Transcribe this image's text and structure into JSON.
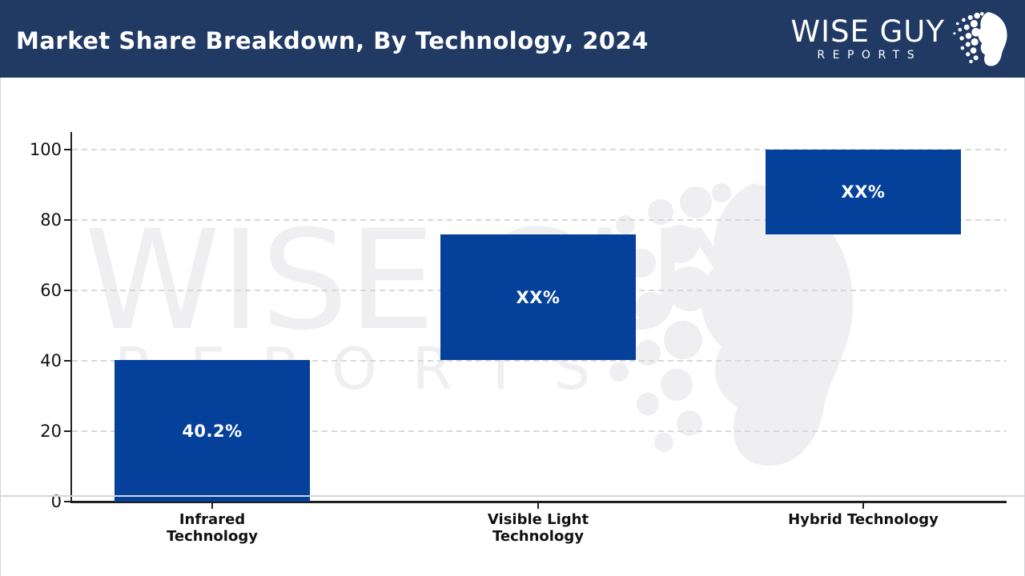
{
  "header": {
    "title": "Market Share Breakdown, By Technology, 2024",
    "logo": {
      "wordmark": "WISE GUY",
      "subtext": "REPORTS"
    }
  },
  "watermark": {
    "wordmark": "WISE GUY",
    "subtext": "REPORTS"
  },
  "colors": {
    "header_bg": "#203a64",
    "bar": "#05419b",
    "grid": "#d8d8d8",
    "axis": "#1f1f1f",
    "watermark": "#efeff2"
  },
  "chart_data": {
    "type": "bar",
    "subtype": "floating-stacked-segments",
    "title": "Market Share Breakdown, By Technology, 2024",
    "categories": [
      {
        "name": "Infrared Technology",
        "lines": [
          "Infrared",
          "Technology"
        ]
      },
      {
        "name": "Visible Light Technology",
        "lines": [
          "Visible Light",
          "Technology"
        ]
      },
      {
        "name": "Hybrid Technology",
        "lines": [
          "Hybrid Technology"
        ]
      }
    ],
    "segments": [
      {
        "category": "Infrared Technology",
        "from": 0,
        "to": 40.2,
        "label": "40.2%"
      },
      {
        "category": "Visible Light Technology",
        "from": 40.2,
        "to": 75.8,
        "label": "XX%"
      },
      {
        "category": "Hybrid Technology",
        "from": 75.8,
        "to": 100,
        "label": "XX%"
      }
    ],
    "ylim": [
      0,
      100
    ],
    "yticks": [
      0,
      20,
      40,
      60,
      80,
      100
    ],
    "unit": "%",
    "grid": "dashed-horizontal",
    "legend": null
  }
}
